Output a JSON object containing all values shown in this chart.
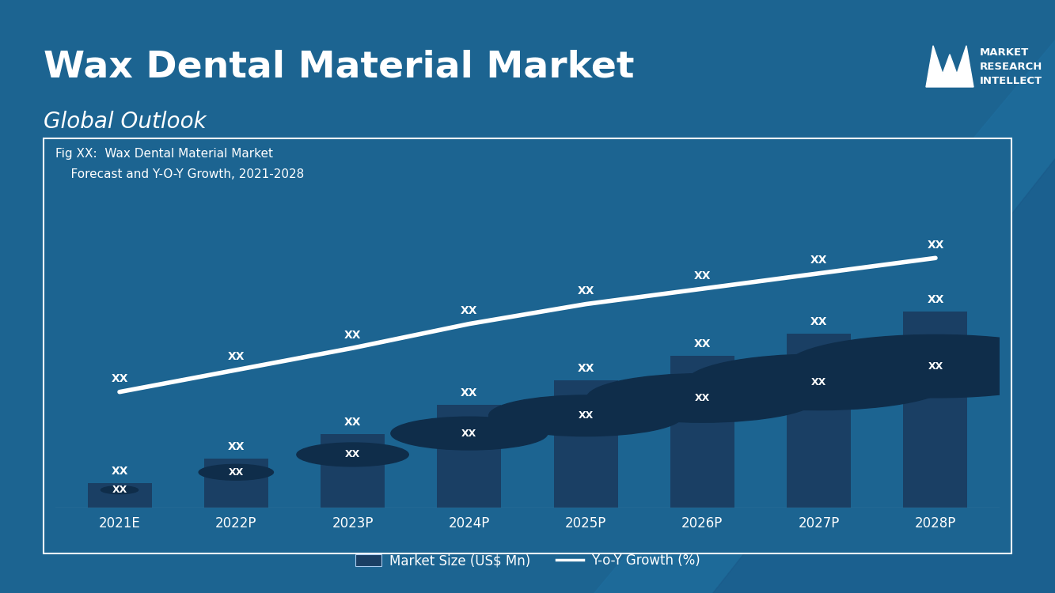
{
  "title": "Wax Dental Material Market",
  "subtitle": "Global Outlook",
  "fig_label_line1": "Fig XX:  Wax Dental Material Market",
  "fig_label_line2": "    Forecast and Y-O-Y Growth, 2021-2028",
  "categories": [
    "2021E",
    "2022P",
    "2023P",
    "2024P",
    "2025P",
    "2026P",
    "2027P",
    "2028P"
  ],
  "bar_values": [
    1.0,
    2.0,
    3.0,
    4.2,
    5.2,
    6.2,
    7.1,
    8.0
  ],
  "line_values": [
    0.5,
    1.5,
    2.5,
    3.6,
    4.5,
    5.2,
    5.9,
    6.6
  ],
  "bar_label": "XX",
  "line_label": "XX",
  "legend_bar": "Market Size (US$ Mn)",
  "legend_line": "Y-o-Y Growth (%)",
  "bg_color": "#1c6491",
  "chart_bg_color": "#1c6491",
  "bar_color": "#1a3f64",
  "bar_color2": "#1e5a8a",
  "circle_color": "#0f2d4a",
  "line_color": "#ffffff",
  "text_color": "#ffffff",
  "title_color": "#ffffff",
  "watermark_tri1": "#1e6fa0",
  "watermark_tri2": "#1a5a8a",
  "bar_width": 0.55
}
